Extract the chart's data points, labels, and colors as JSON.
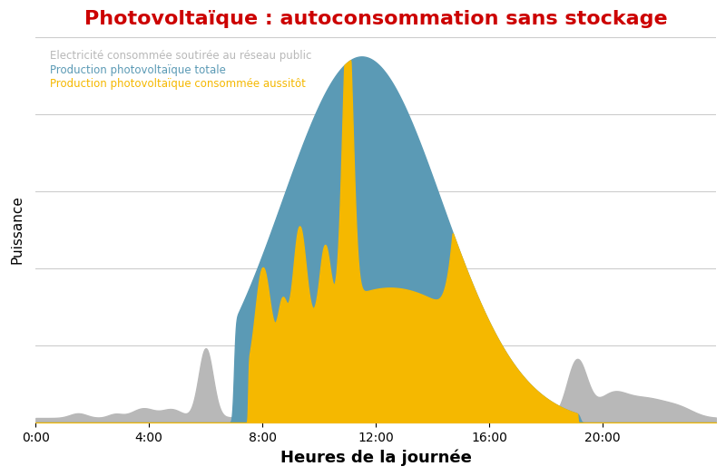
{
  "title": "Photovoltaïque : autoconsommation sans stockage",
  "xlabel": "Heures de la journée",
  "ylabel": "Puissance",
  "title_color": "#cc0000",
  "gray_color": "#b8b8b8",
  "blue_color": "#5b9ab5",
  "yellow_color": "#f5b800",
  "legend_gray": "Electricité consommée soutirée au réseau public",
  "legend_blue": "Production photovoltaïque totale",
  "legend_yellow": "Production photovoltaïque consommée aussitôt",
  "x_ticks": [
    0,
    4,
    8,
    12,
    16,
    20
  ],
  "x_tick_labels": [
    "0:00",
    "4:00",
    "8:00",
    "12:00",
    "16:00",
    "20:00"
  ],
  "xlim": [
    0,
    24
  ],
  "ylim": [
    0,
    10
  ]
}
